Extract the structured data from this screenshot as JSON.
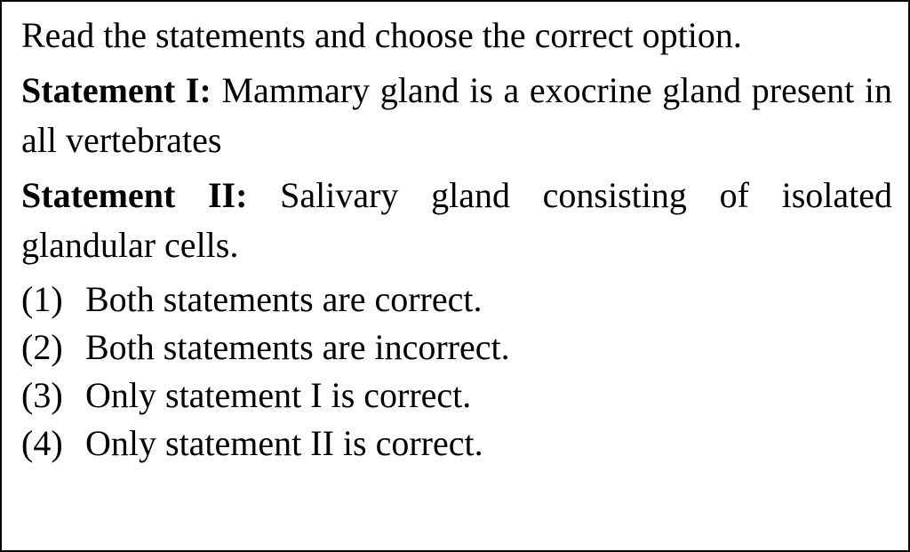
{
  "document": {
    "font_family": "Times New Roman",
    "base_fontsize_pt": 30,
    "text_color": "#000000",
    "background_color": "#ffffff",
    "border_color": "#000000",
    "instruction": "Read the statements and choose the correct option.",
    "statements": [
      {
        "label": "Statement I:",
        "text": "Mammary gland is a exocrine gland present in all vertebrates"
      },
      {
        "label": "Statement II:",
        "text": "Salivary gland consisting of isolated glandular cells."
      }
    ],
    "options": [
      {
        "num": "(1)",
        "text": "Both statements are correct."
      },
      {
        "num": "(2)",
        "text": "Both statements are incorrect."
      },
      {
        "num": "(3)",
        "text": "Only statement I is correct."
      },
      {
        "num": "(4)",
        "text": "Only statement II is correct."
      }
    ]
  }
}
